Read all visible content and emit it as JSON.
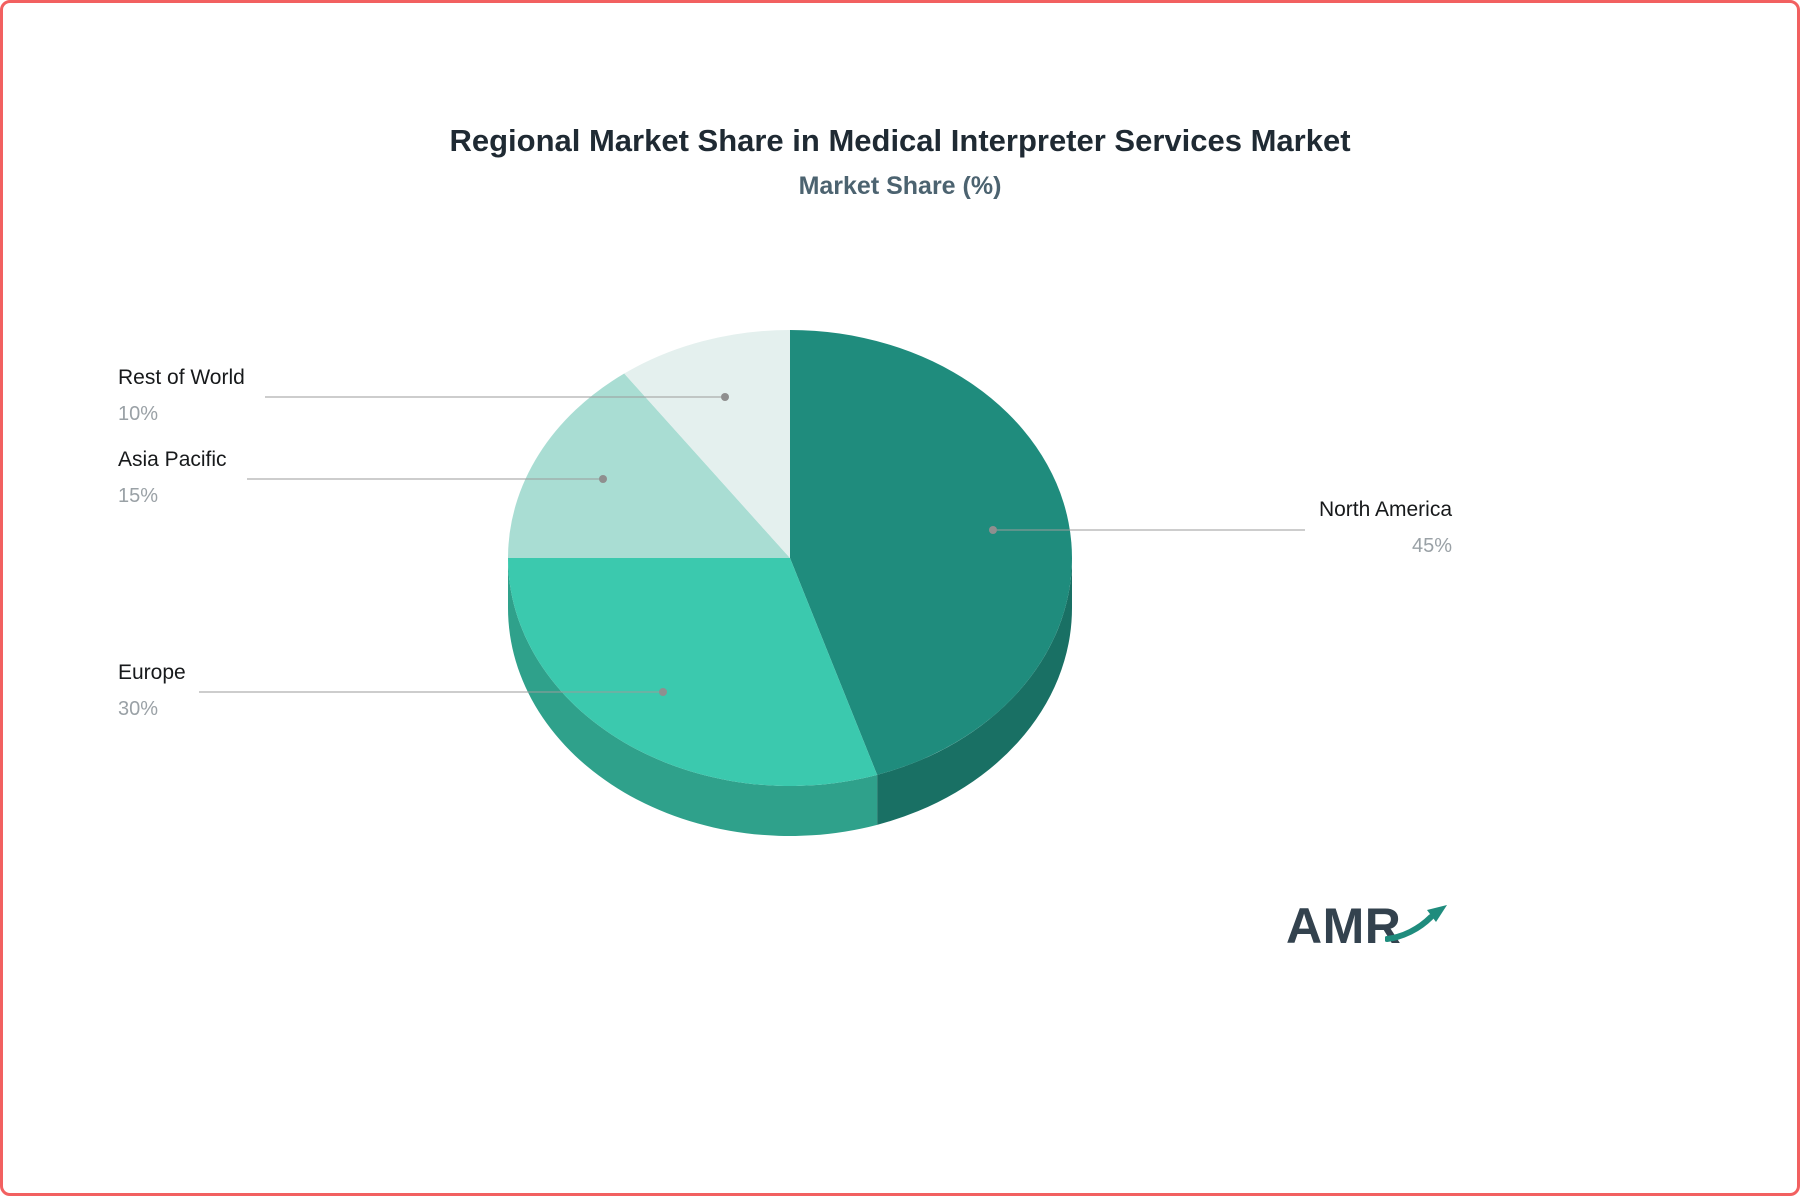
{
  "page": {
    "background": "#ffffff",
    "border_color": "#f26060"
  },
  "branding": {
    "logo_text": "AMR",
    "accent_color": "#1f8c7d",
    "logo_text_color": "#33424e"
  },
  "chart_data": {
    "type": "pie",
    "style": "3d-pie",
    "title": "Regional Market Share in Medical Interpreter Services Market",
    "subtitle": "Market Share (%)",
    "unit": "%",
    "start_angle_deg": -90,
    "direction": "clockwise",
    "legend_position": "none",
    "label_style": "leader-lines",
    "categories": [
      "North America",
      "Europe",
      "Asia Pacific",
      "Rest of World"
    ],
    "values": [
      45,
      30,
      15,
      10
    ],
    "slices": [
      {
        "label": "North America",
        "value": 45,
        "display": "45%",
        "color": "#1f8c7d"
      },
      {
        "label": "Europe",
        "value": 30,
        "display": "30%",
        "color": "#3bc9ae"
      },
      {
        "label": "Asia Pacific",
        "value": 15,
        "display": "15%",
        "color": "#a9ddd3"
      },
      {
        "label": "Rest of World",
        "value": 10,
        "display": "10%",
        "color": "#e4f0ee"
      }
    ]
  }
}
